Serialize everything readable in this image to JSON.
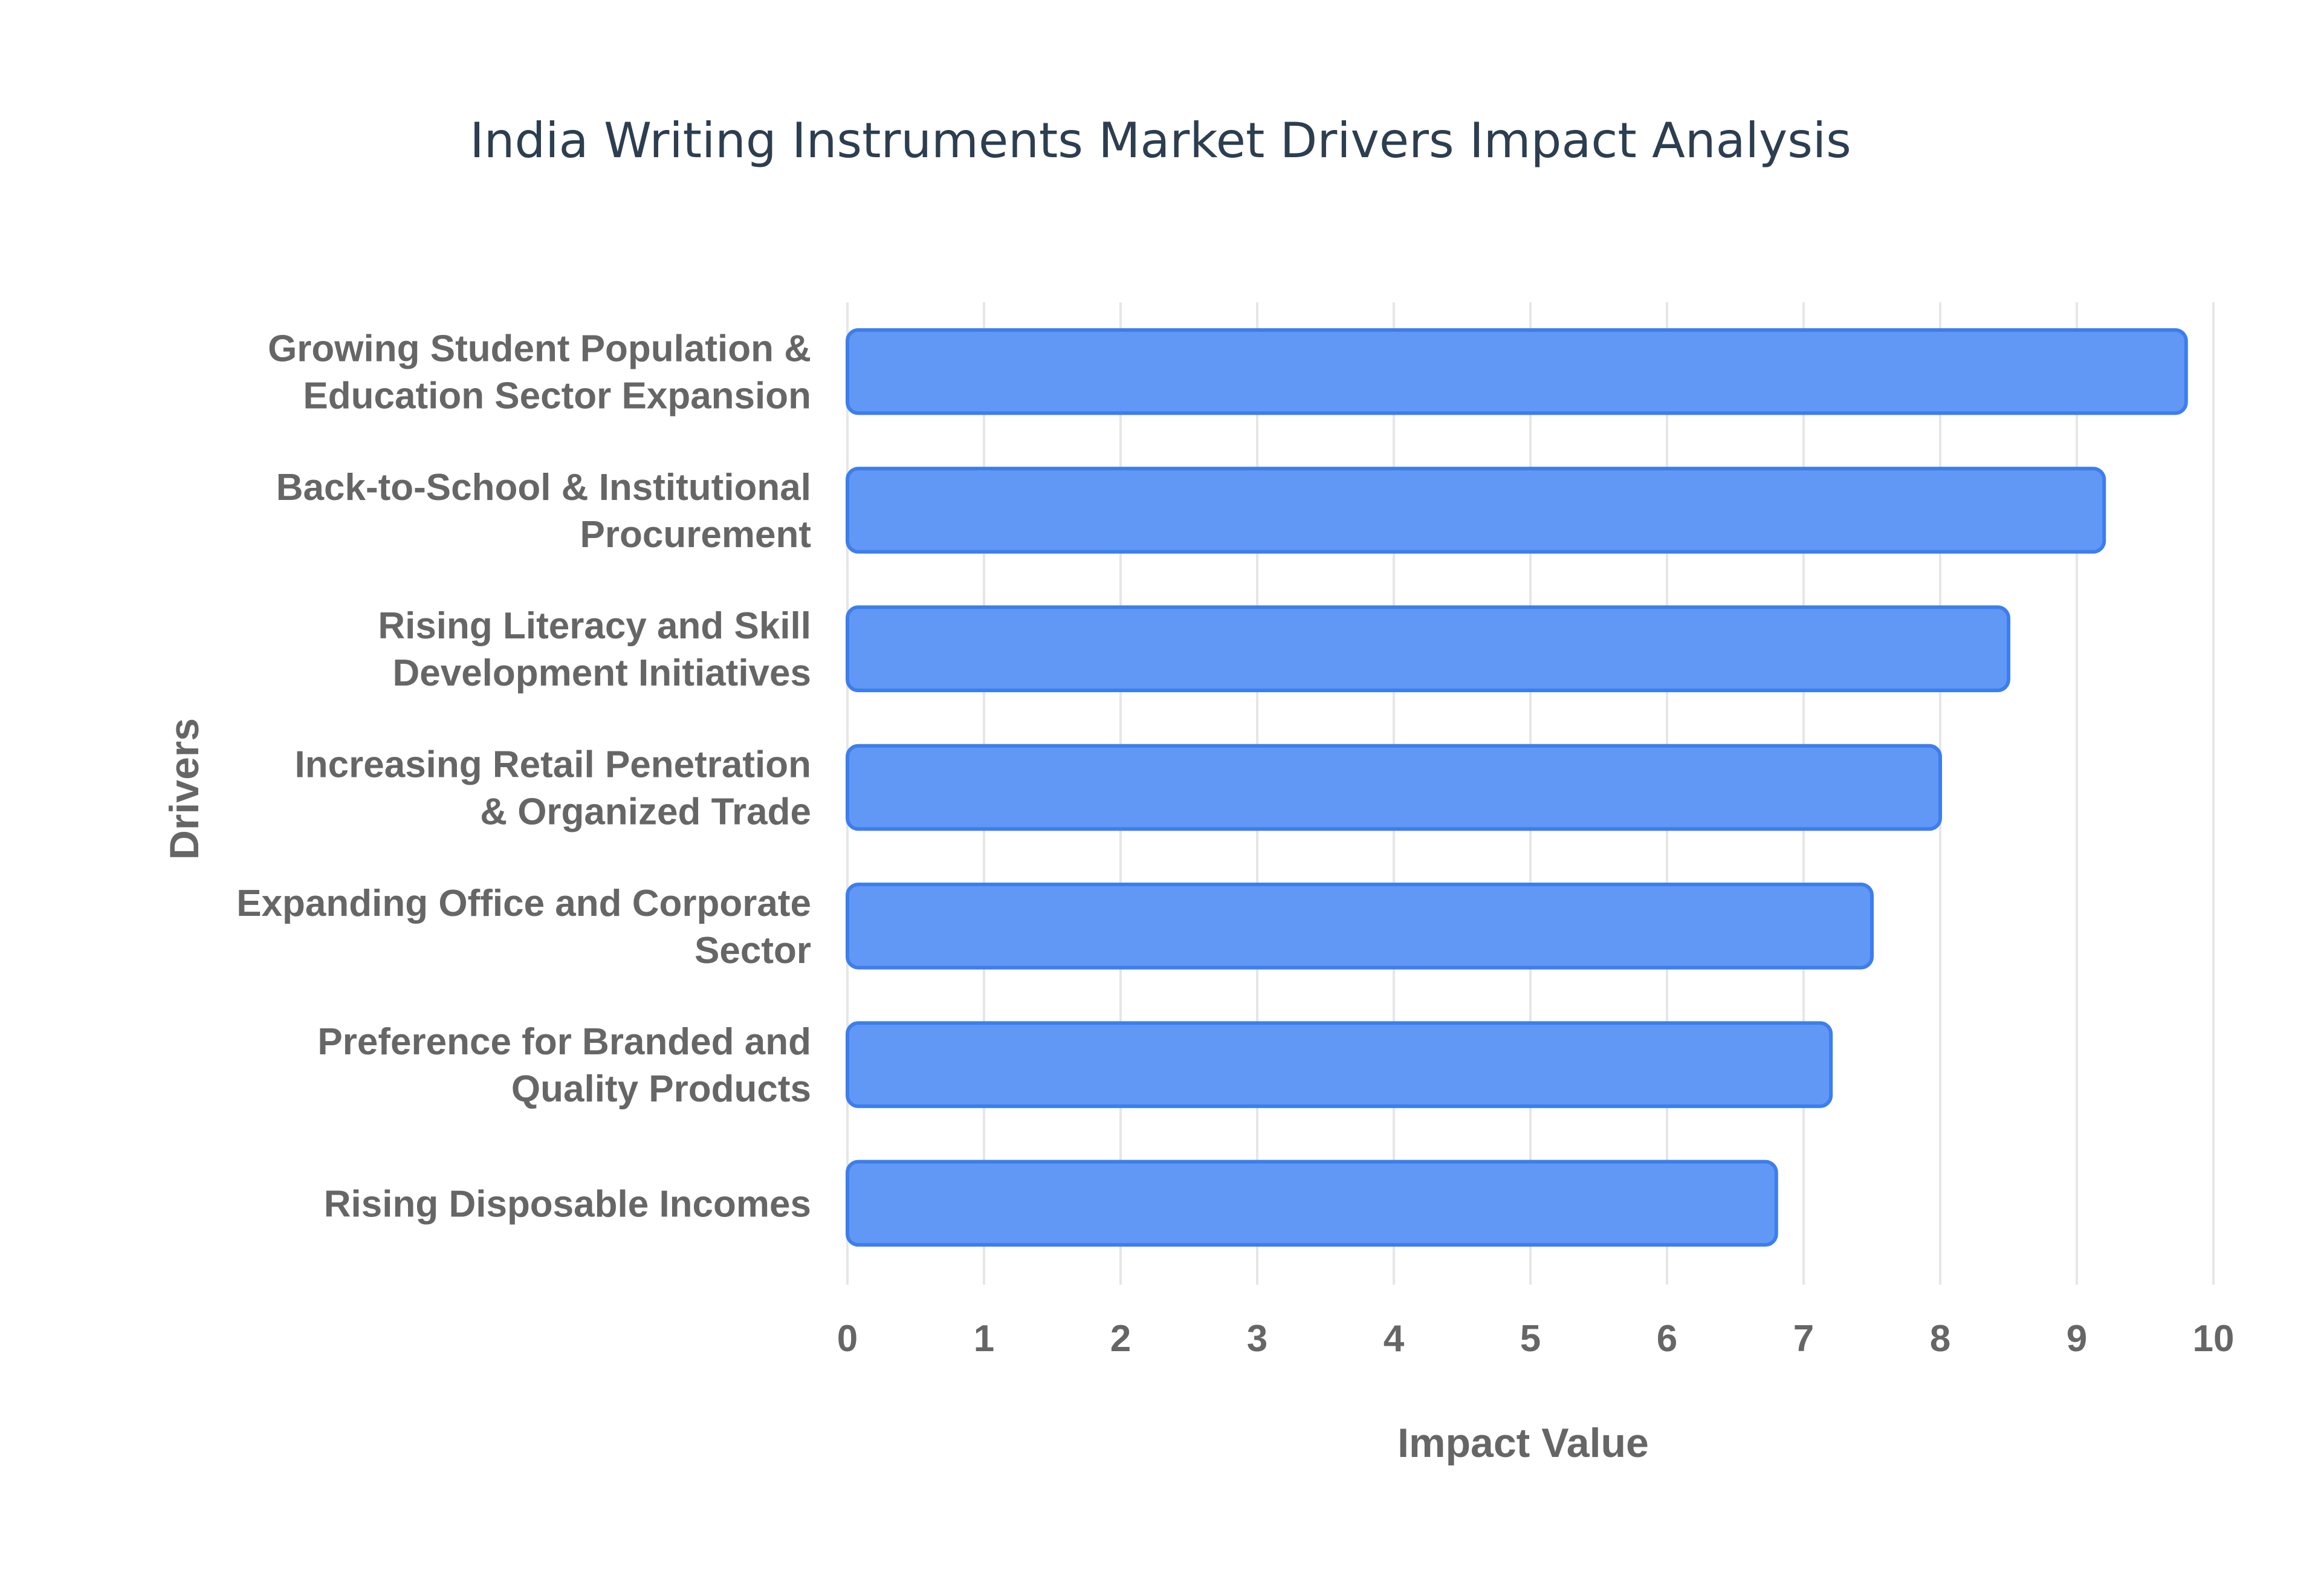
{
  "chart_data": {
    "type": "bar",
    "orientation": "horizontal",
    "title": "India Writing Instruments Market Drivers Impact Analysis",
    "xlabel": "Impact Value",
    "ylabel": "Drivers",
    "xlim": [
      0,
      10
    ],
    "x_ticks": [
      "0",
      "1",
      "2",
      "3",
      "4",
      "5",
      "6",
      "7",
      "8",
      "9",
      "10"
    ],
    "grid": true,
    "legend": "none",
    "categories": [
      [
        "Growing Student Population &",
        "Education Sector Expansion"
      ],
      [
        "Back-to-School & Institutional",
        "Procurement"
      ],
      [
        "Rising Literacy and Skill",
        "Development Initiatives"
      ],
      [
        "Increasing Retail Penetration",
        "& Organized Trade"
      ],
      [
        "Expanding Office and Corporate",
        "Sector"
      ],
      [
        "Preference for Branded and",
        "Quality Products"
      ],
      [
        "Rising Disposable Incomes"
      ]
    ],
    "values": [
      9.8,
      9.2,
      8.5,
      8.0,
      7.5,
      7.2,
      6.8
    ],
    "colors": {
      "bar_fill": "#6198f5",
      "bar_stroke": "#3d7eee",
      "title": "#2c3e50",
      "axis_text": "#666666",
      "grid": "#e6e6e6"
    }
  }
}
